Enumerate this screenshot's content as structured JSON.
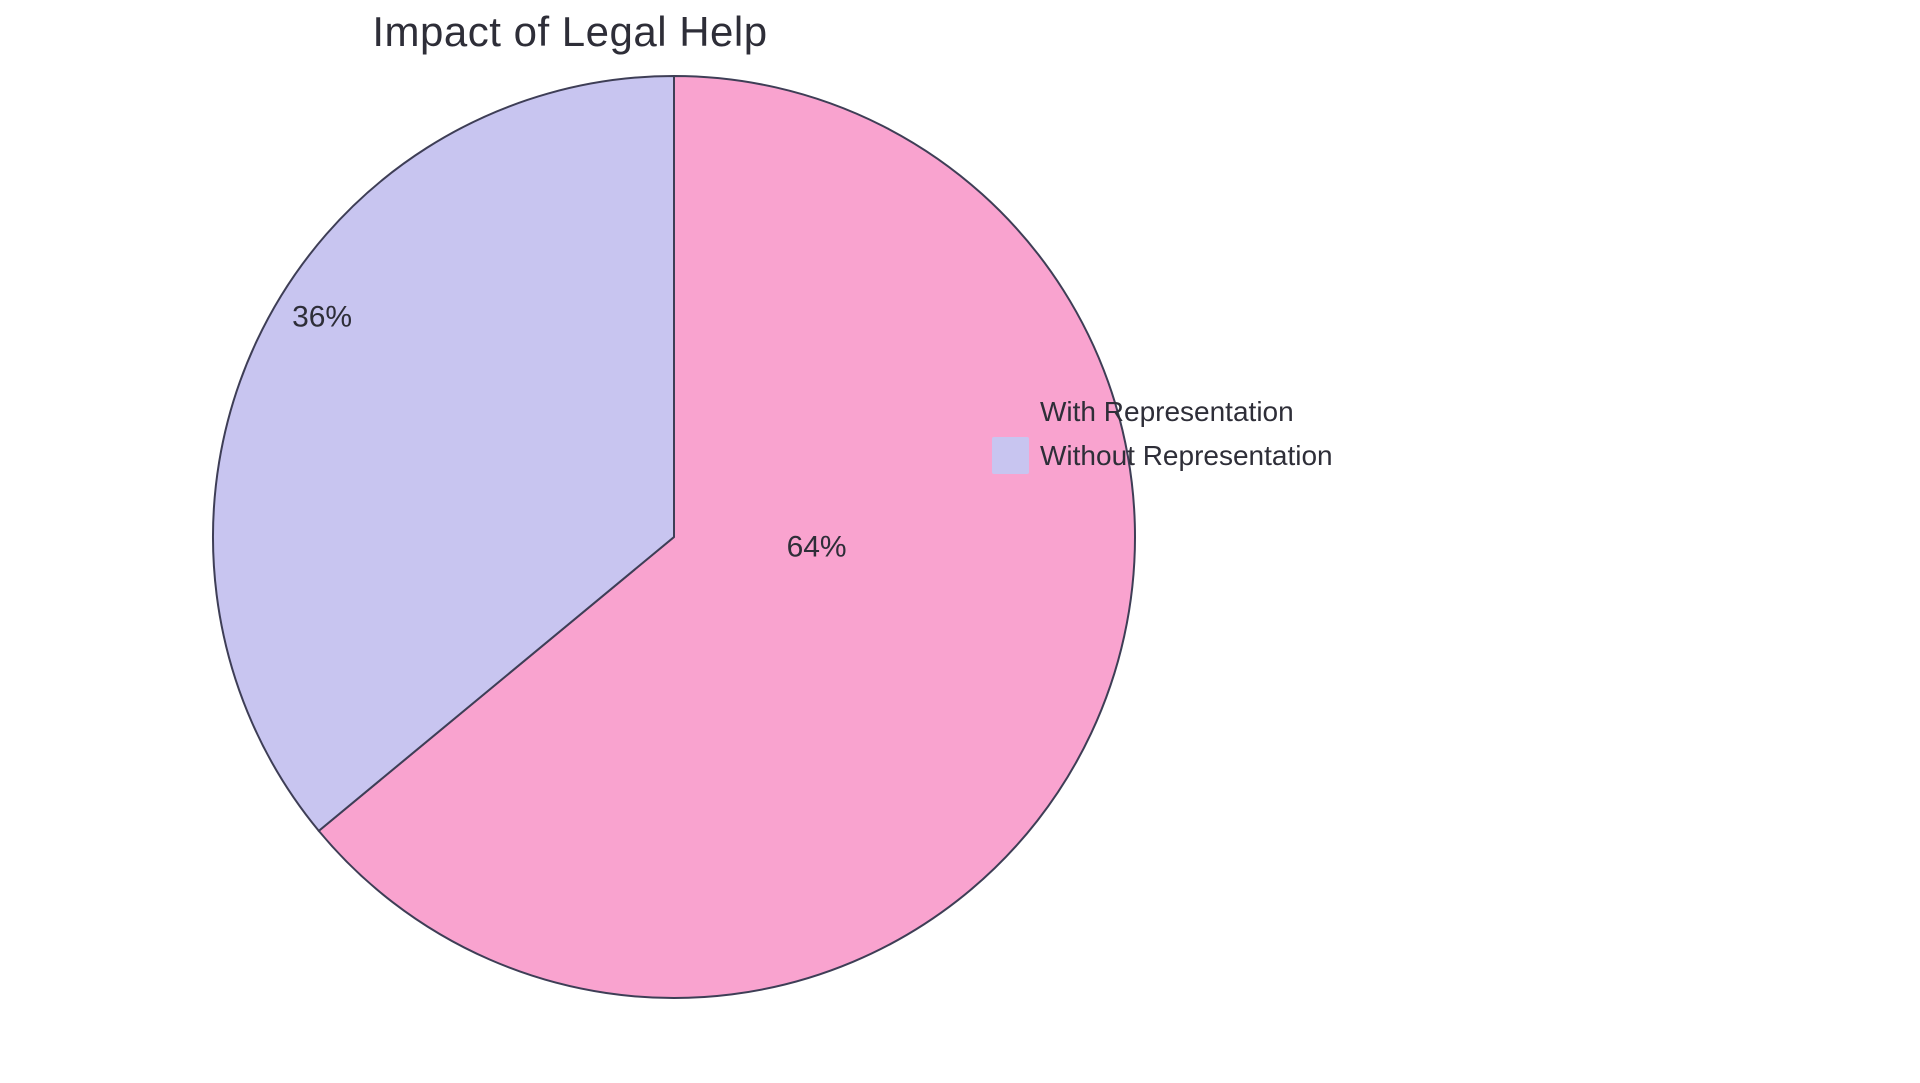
{
  "chart_data": {
    "type": "pie",
    "title": "Impact of Legal Help",
    "legend_position": "right",
    "start_angle_deg": 0,
    "direction": "clockwise",
    "outline_color": "#3e3e56",
    "text_color": "#2e2e38",
    "background_color": "#ffffff",
    "slices": [
      {
        "label": "With Representation",
        "value": 64,
        "pct_label": "64%",
        "color": "#f9a3cf",
        "label_pos": {
          "angle_deg": 94,
          "radius_frac": 0.31
        }
      },
      {
        "label": "Without Representation",
        "value": 36,
        "pct_label": "36%",
        "color": "#c8c5f0",
        "label_pos": {
          "angle_deg": 302,
          "radius_frac": 0.9
        }
      }
    ]
  }
}
